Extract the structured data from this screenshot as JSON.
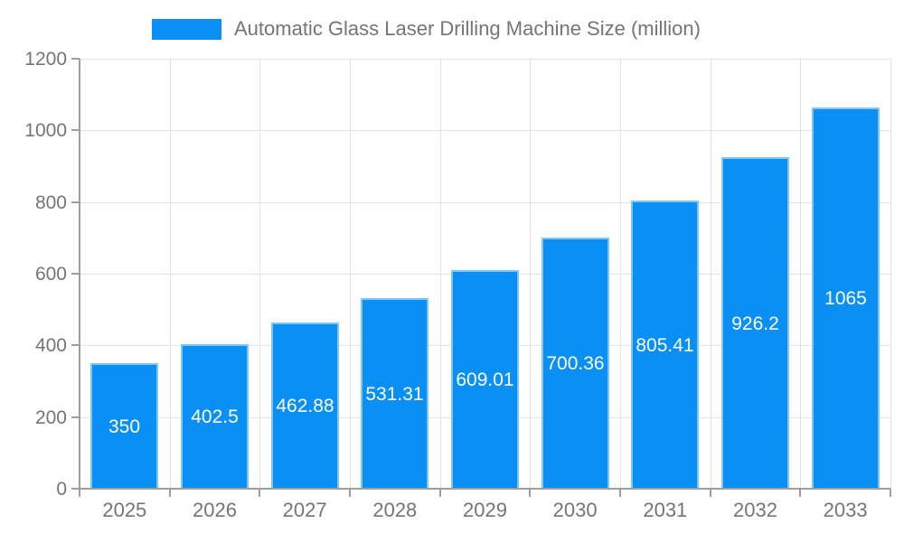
{
  "chart_data": {
    "type": "bar",
    "title": "",
    "legend": {
      "label": "Automatic Glass Laser Drilling Machine Size (million)",
      "position": "top"
    },
    "categories": [
      "2025",
      "2026",
      "2027",
      "2028",
      "2029",
      "2030",
      "2031",
      "2032",
      "2033"
    ],
    "series": [
      {
        "name": "Automatic Glass Laser Drilling Machine Size (million)",
        "values": [
          350,
          402.5,
          462.88,
          531.31,
          609.01,
          700.36,
          805.41,
          926.2,
          1065
        ],
        "value_labels": [
          "350",
          "402.5",
          "462.88",
          "531.31",
          "609.01",
          "700.36",
          "805.41",
          "926.2",
          "1065"
        ]
      }
    ],
    "xlabel": "",
    "ylabel": "",
    "ylim": [
      0,
      1200
    ],
    "yticks": [
      0,
      200,
      400,
      600,
      800,
      1000,
      1200
    ],
    "grid": true,
    "value_labels_inside_bars": true,
    "colors": {
      "bar_fill": "#0a90f5",
      "bar_border": "#7ec6fb",
      "grid": "#e3e3e3",
      "axis": "#9e9e9e",
      "tick_text": "#757575",
      "legend_text": "#757575",
      "value_text": "#ffffff",
      "background": "#ffffff"
    }
  }
}
